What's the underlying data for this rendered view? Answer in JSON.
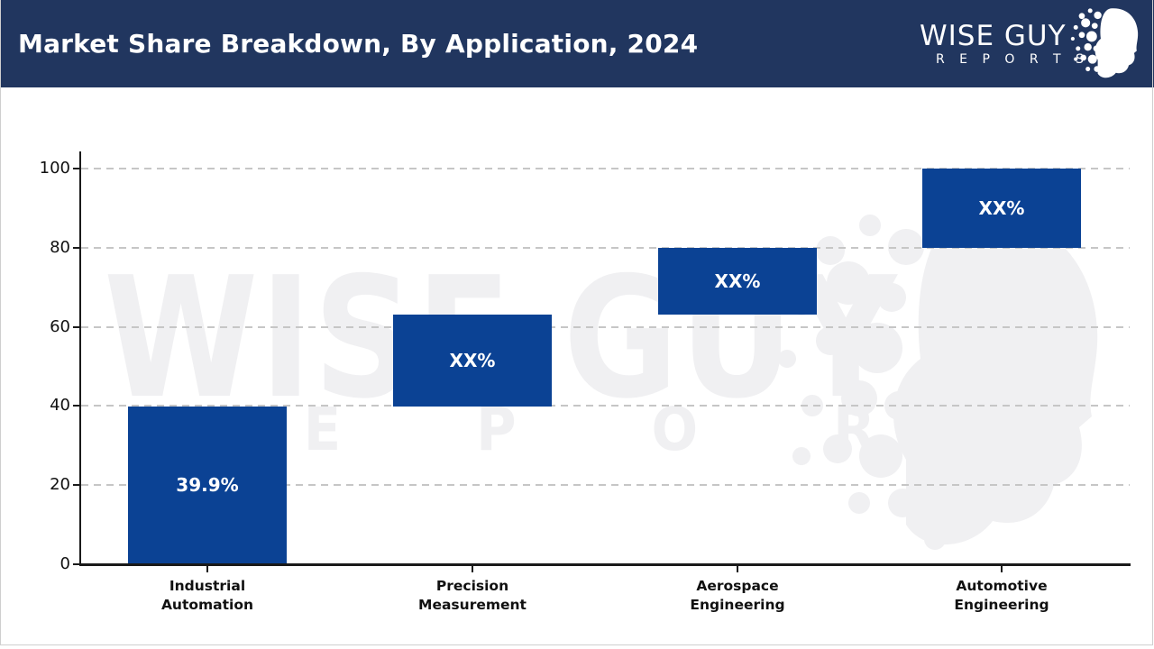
{
  "header": {
    "title": "Market Share Breakdown, By Application, 2024",
    "background_color": "#21365f",
    "logo": {
      "name_top": "WISE GUY",
      "name_bottom": "R E P O R T S"
    }
  },
  "watermark": {
    "line1": "WISE GUY",
    "line2": "R E P O R T S"
  },
  "chart_data": {
    "type": "bar",
    "subtype": "waterfall",
    "title": "Market Share Breakdown, By Application, 2024",
    "categories": [
      "Industrial Automation",
      "Precision Measurement",
      "Aerospace Engineering",
      "Automotive Engineering"
    ],
    "segments": [
      {
        "category": "Industrial Automation",
        "start": 0,
        "end": 39.9,
        "value_label": "39.9%"
      },
      {
        "category": "Precision Measurement",
        "start": 39.9,
        "end": 63,
        "value_label": "XX%"
      },
      {
        "category": "Aerospace Engineering",
        "start": 63,
        "end": 80,
        "value_label": "XX%"
      },
      {
        "category": "Automotive Engineering",
        "start": 80,
        "end": 100,
        "value_label": "XX%"
      }
    ],
    "ylim": [
      0,
      100
    ],
    "yticks": [
      0,
      20,
      40,
      60,
      80,
      100
    ],
    "grid": "horizontal-dashed",
    "legend": "none",
    "bar_color": "#0b4294",
    "value_label_color": "#ffffff"
  }
}
